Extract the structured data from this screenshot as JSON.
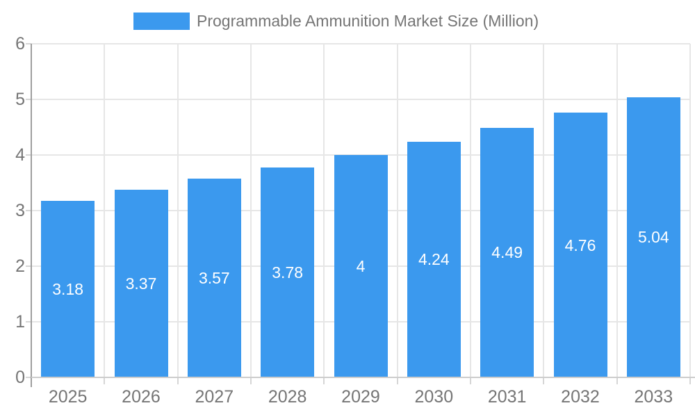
{
  "legend": {
    "label": "Programmable Ammunition Market Size (Million)"
  },
  "chart_data": {
    "type": "bar",
    "title": "Programmable Ammunition Market Size (Million)",
    "categories": [
      "2025",
      "2026",
      "2027",
      "2028",
      "2029",
      "2030",
      "2031",
      "2032",
      "2033"
    ],
    "values": [
      3.18,
      3.37,
      3.57,
      3.78,
      4,
      4.24,
      4.49,
      4.76,
      5.04
    ],
    "value_labels": [
      "3.18",
      "3.37",
      "3.57",
      "3.78",
      "4",
      "4.24",
      "4.49",
      "4.76",
      "5.04"
    ],
    "xlabel": "",
    "ylabel": "",
    "ylim": [
      0,
      6
    ],
    "yticks": [
      0,
      1,
      2,
      3,
      4,
      5,
      6
    ],
    "grid": true,
    "legend_position": "top",
    "colors": {
      "bar": "#3b99ee",
      "axis_text": "#757575",
      "value_text": "#ffffff",
      "gridline": "#e6e6e6",
      "y_axis_line": "#9e9e9e",
      "x_axis_line": "#cccccc",
      "tick": "#d6d6d6"
    }
  }
}
